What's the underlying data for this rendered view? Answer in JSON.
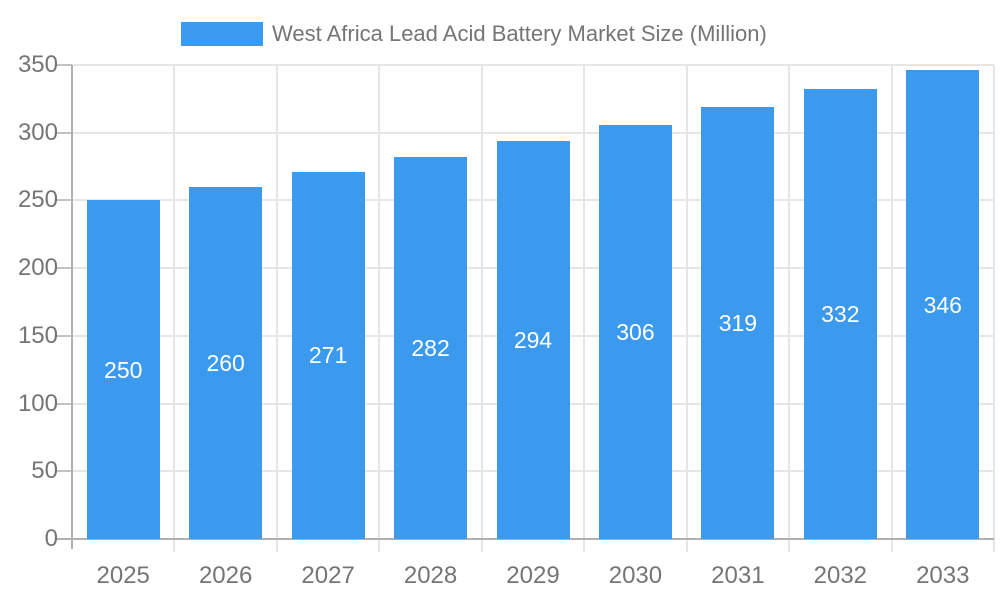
{
  "chart_data": {
    "type": "bar",
    "title": "West Africa Lead Acid Battery Market Size (Million)",
    "legend": {
      "position": "top",
      "label": "West Africa Lead Acid Battery Market Size (Million)"
    },
    "categories": [
      "2025",
      "2026",
      "2027",
      "2028",
      "2029",
      "2030",
      "2031",
      "2032",
      "2033"
    ],
    "values": [
      250,
      260,
      271,
      282,
      294,
      306,
      319,
      332,
      346
    ],
    "xlabel": "",
    "ylabel": "",
    "ylim": [
      0,
      350
    ],
    "ytick_step": 50,
    "ytick_labels": [
      "0",
      "50",
      "100",
      "150",
      "200",
      "250",
      "300",
      "350"
    ],
    "grid": true,
    "bar_labels_inside": true,
    "colors": {
      "bar": "#3b99ee",
      "grid": "#e6e6e6",
      "axis": "#b0b0b0",
      "tick": "#c2c2c2",
      "text": "#757575",
      "bar_label": "#ffffff",
      "background": "#ffffff"
    }
  }
}
